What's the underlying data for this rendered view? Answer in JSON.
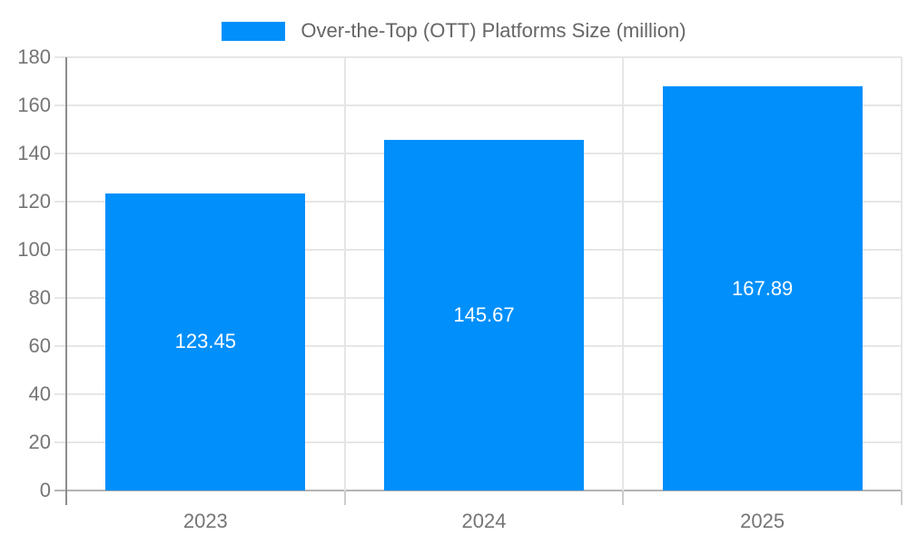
{
  "legend": {
    "label": "Over-the-Top (OTT) Platforms Size (million)",
    "swatch_color": "#008FFB"
  },
  "chart_data": {
    "type": "bar",
    "title": "Over-the-Top (OTT) Platforms Size (million)",
    "categories": [
      "2023",
      "2024",
      "2025"
    ],
    "values": [
      123.45,
      145.67,
      167.89
    ],
    "value_labels": [
      "123.45",
      "145.67",
      "167.89"
    ],
    "xlabel": "",
    "ylabel": "",
    "ylim": [
      0,
      180
    ],
    "ytick_step": 20,
    "ytick_labels": [
      "0",
      "20",
      "40",
      "60",
      "80",
      "100",
      "120",
      "140",
      "160",
      "180"
    ],
    "grid": true,
    "legend_position": "top-center",
    "colors": {
      "bar": "#008FFB",
      "bar_value_label": "#ffffff",
      "axis_text": "#757575",
      "legend_text": "#666666",
      "gridline": "#e6e6e6",
      "baseline": "#b3b3b3",
      "y_axis_line": "#8c8c8c",
      "x_tick": "#cccccc",
      "background": "#ffffff"
    }
  }
}
